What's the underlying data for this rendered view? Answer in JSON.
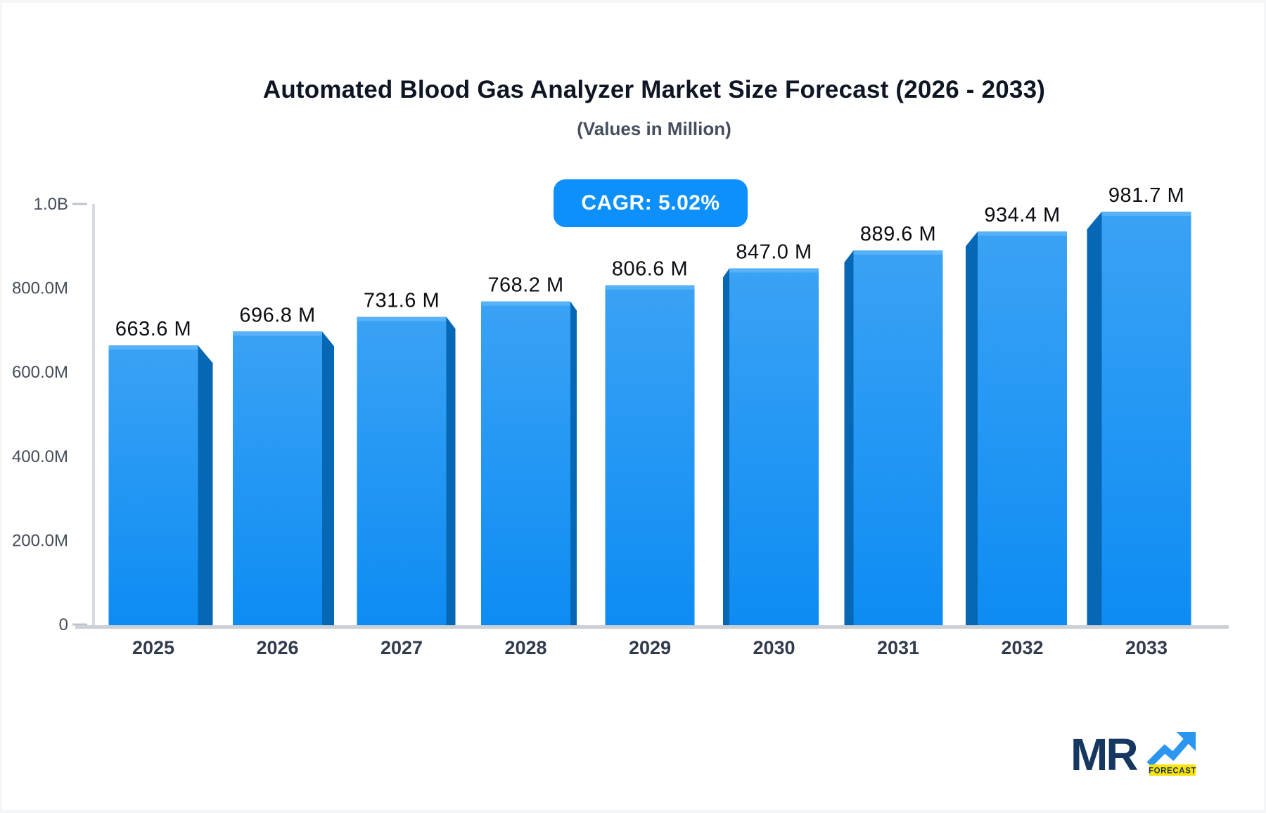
{
  "chart_data": {
    "type": "bar",
    "title": "Automated Blood Gas Analyzer Market Size Forecast (2026 - 2033)",
    "subtitle": "(Values in Million)",
    "categories": [
      "2025",
      "2026",
      "2027",
      "2028",
      "2029",
      "2030",
      "2031",
      "2032",
      "2033"
    ],
    "values": [
      663.6,
      696.8,
      731.6,
      768.2,
      806.6,
      847.0,
      889.6,
      934.4,
      981.7
    ],
    "value_labels": [
      "663.6 M",
      "696.8 M",
      "731.6 M",
      "768.2 M",
      "806.6 M",
      "847.0 M",
      "889.6 M",
      "934.4 M",
      "981.7 M"
    ],
    "xlabel": "",
    "ylabel": "",
    "grid": "off",
    "legend": "none",
    "y_axis": {
      "range": [
        0,
        1000
      ],
      "unit": "Million",
      "ticks": [
        {
          "label": "0",
          "value": 0,
          "dash": true
        },
        {
          "label": "200.0M",
          "value": 200,
          "dash": false
        },
        {
          "label": "400.0M",
          "value": 400,
          "dash": false
        },
        {
          "label": "600.0M",
          "value": 600,
          "dash": false
        },
        {
          "label": "800.0M",
          "value": 800,
          "dash": false
        },
        {
          "label": "1.0B",
          "value": 1000,
          "dash": true
        }
      ]
    },
    "colors": {
      "bar_top": "#3aa2f4",
      "bar_bottom": "#0d8cf3",
      "bar_highlight": "#58b2f7",
      "bar_side": "#0667b4",
      "axis_line": "#d7dade",
      "baseline": "#ccd0d7",
      "tick": "#bfc3c9"
    }
  },
  "badge": {
    "label": "CAGR: 5.02%",
    "bg_color": "#0d90fb",
    "text_color": "#ffffff"
  },
  "logo": {
    "text": "MR",
    "sub_text": "FORECAST",
    "navy": "#16375f",
    "blue": "#2b96f0",
    "yellow": "#ffe400"
  }
}
